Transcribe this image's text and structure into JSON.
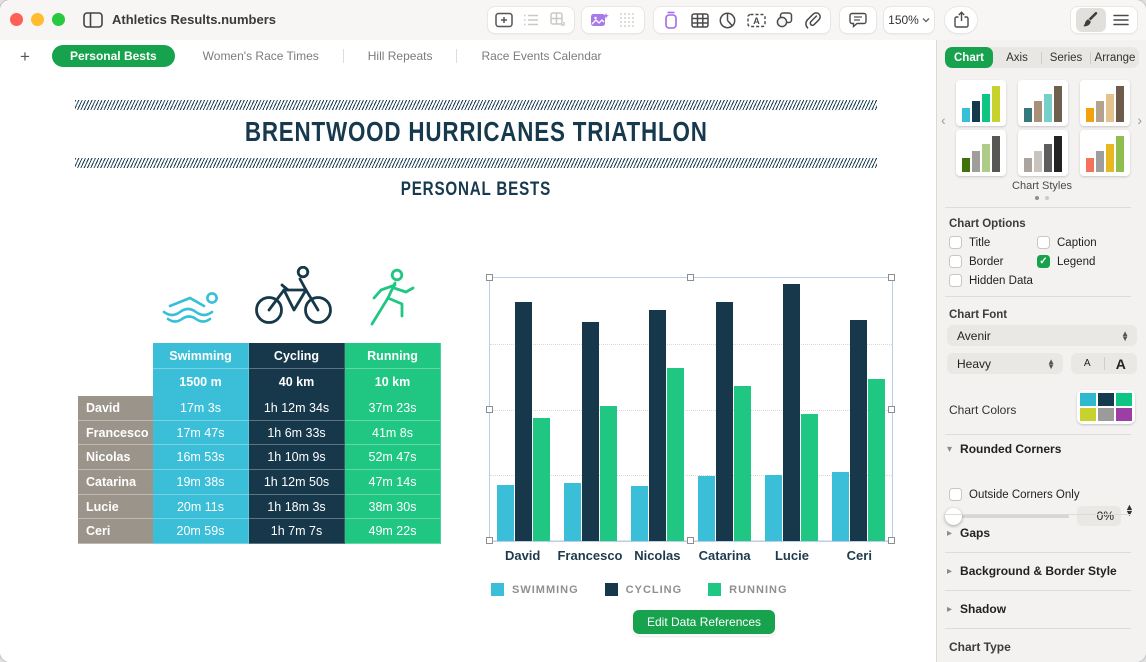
{
  "window": {
    "title": "Athletics Results.numbers"
  },
  "toolbar": {
    "zoom_level": "150%",
    "icons": [
      "insert-icon",
      "list-icon",
      "pivot-table-icon",
      "image-sparkle-icon",
      "dots-grid-icon",
      "jar-shape-icon",
      "table-icon",
      "pie-chart-icon",
      "text-box-icon",
      "shapes-icon",
      "paperclip-icon",
      "comment-icon",
      "share-icon",
      "format-brush-icon",
      "organize-icon"
    ]
  },
  "tabs": [
    {
      "label": "Personal Bests",
      "active": true
    },
    {
      "label": "Women's Race Times",
      "active": false
    },
    {
      "label": "Hill Repeats",
      "active": false
    },
    {
      "label": "Race Events Calendar",
      "active": false
    }
  ],
  "sheet": {
    "title": "BRENTWOOD HURRICANES TRIATHLON",
    "subtitle": "PERSONAL BESTS"
  },
  "table": {
    "columns": [
      {
        "label": "Swimming",
        "distance": "1500 m",
        "color": "#3bbfd8"
      },
      {
        "label": "Cycling",
        "distance": "40 km",
        "color": "#16384a"
      },
      {
        "label": "Running",
        "distance": "10 km",
        "color": "#1fc783"
      }
    ],
    "rows": [
      {
        "name": "David",
        "times": [
          "17m 3s",
          "1h 12m 34s",
          "37m 23s"
        ]
      },
      {
        "name": "Francesco",
        "times": [
          "17m 47s",
          "1h 6m 33s",
          "41m 8s"
        ]
      },
      {
        "name": "Nicolas",
        "times": [
          "16m 53s",
          "1h 10m 9s",
          "52m 47s"
        ]
      },
      {
        "name": "Catarina",
        "times": [
          "19m 38s",
          "1h 12m 50s",
          "47m 14s"
        ]
      },
      {
        "name": "Lucie",
        "times": [
          "20m 11s",
          "1h 18m 3s",
          "38m 30s"
        ]
      },
      {
        "name": "Ceri",
        "times": [
          "20m 59s",
          "1h 7m 7s",
          "49m 22s"
        ]
      }
    ]
  },
  "chart_data": {
    "type": "bar",
    "categories": [
      "David",
      "Francesco",
      "Nicolas",
      "Catarina",
      "Lucie",
      "Ceri"
    ],
    "series": [
      {
        "name": "SWIMMING",
        "color": "#3bbfd8",
        "values_minutes": [
          17.05,
          17.78,
          16.88,
          19.63,
          20.18,
          20.98
        ]
      },
      {
        "name": "CYCLING",
        "color": "#16384a",
        "values_minutes": [
          72.57,
          66.55,
          70.15,
          72.83,
          78.05,
          67.12
        ]
      },
      {
        "name": "RUNNING",
        "color": "#1fc783",
        "values_minutes": [
          37.38,
          41.13,
          52.78,
          47.23,
          38.5,
          49.37
        ]
      }
    ],
    "ylim": [
      0,
      80
    ],
    "gridlines": true,
    "value_axis_labels": false,
    "legend_position": "bottom",
    "selected": true
  },
  "edit_button": "Edit Data References",
  "sidebar": {
    "tabs": [
      {
        "label": "Chart",
        "active": true
      },
      {
        "label": "Axis",
        "active": false
      },
      {
        "label": "Series",
        "active": false
      },
      {
        "label": "Arrange",
        "active": false
      }
    ],
    "styles_label": "Chart Styles",
    "style_thumbs": [
      [
        "#35bfd8",
        "#14384c",
        "#0ec583",
        "#c8d22e"
      ],
      [
        "#37787a",
        "#a89178",
        "#76cfc8",
        "#6f5f4e"
      ],
      [
        "#f2a20d",
        "#b3a28e",
        "#e3c28e",
        "#6f5b49"
      ],
      [
        "#3f7209",
        "#9e9e9a",
        "#aecc87",
        "#575754"
      ],
      [
        "#aba49c",
        "#c9c4bd",
        "#5e5e5e",
        "#222222"
      ],
      [
        "#f4715c",
        "#9e9e9e",
        "#e8b820",
        "#8fbe4f"
      ]
    ],
    "options": {
      "heading": "Chart Options",
      "checkboxes": [
        {
          "label": "Title",
          "checked": false
        },
        {
          "label": "Caption",
          "checked": false
        },
        {
          "label": "Border",
          "checked": false
        },
        {
          "label": "Legend",
          "checked": true
        },
        {
          "label": "Hidden Data",
          "checked": false
        }
      ]
    },
    "font": {
      "heading": "Chart Font",
      "family": "Avenir",
      "weight": "Heavy",
      "size_small": "A",
      "size_large": "A"
    },
    "colors_label": "Chart Colors",
    "color_swatches": [
      "#2fb9ce",
      "#143b4f",
      "#0ec583",
      "#c8d22e",
      "#9b9b9b",
      "#9b3fa5"
    ],
    "rounded": {
      "label": "Rounded Corners",
      "value": "0%",
      "outside_label": "Outside Corners Only",
      "outside_checked": false
    },
    "collapsed_sections": [
      "Gaps",
      "Background & Border Style",
      "Shadow"
    ],
    "chart_type_label": "Chart Type",
    "accent_green": "#17a24d"
  }
}
